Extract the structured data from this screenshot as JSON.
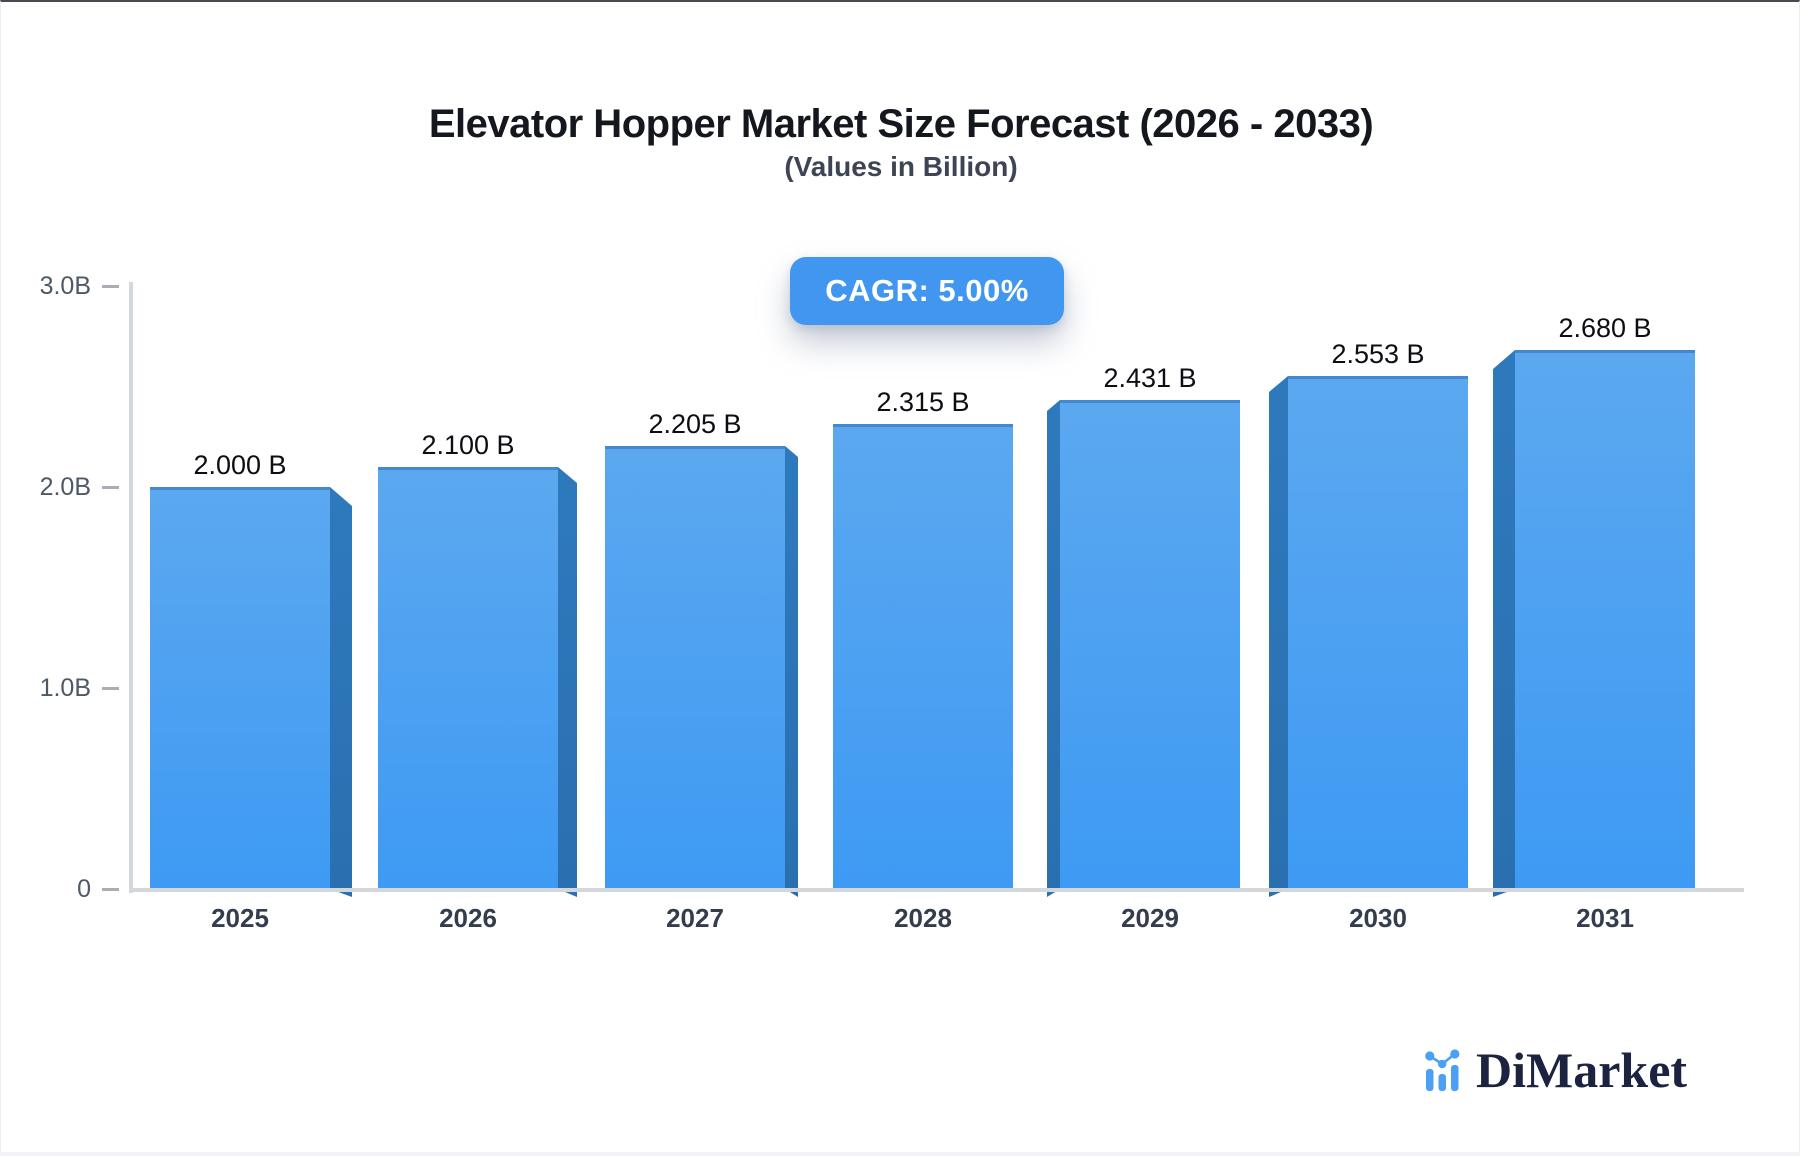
{
  "header": {
    "title": "Elevator Hopper Market Size Forecast (2026 - 2033)",
    "subtitle": "(Values in Billion)",
    "cagr_label": "CAGR: 5.00%"
  },
  "chart_data": {
    "type": "bar",
    "title": "Elevator Hopper Market Size Forecast (2026 - 2033)",
    "subtitle": "(Values in Billion)",
    "cagr": "5.00%",
    "unit": "Billion",
    "categories": [
      "2025",
      "2026",
      "2027",
      "2028",
      "2029",
      "2030",
      "2031"
    ],
    "values": [
      2.0,
      2.1,
      2.205,
      2.315,
      2.431,
      2.553,
      2.68
    ],
    "value_labels": [
      "2.000 B",
      "2.100 B",
      "2.205 B",
      "2.315 B",
      "2.431 B",
      "2.553 B",
      "2.680 B"
    ],
    "ylim": [
      0,
      3.0
    ],
    "yticks": [
      {
        "value": 0,
        "label": "0"
      },
      {
        "value": 1,
        "label": "1.0B"
      },
      {
        "value": 2,
        "label": "2.0B"
      },
      {
        "value": 3,
        "label": "3.0B"
      }
    ],
    "grid": false,
    "legend": false,
    "style": "3d-perspective-bars",
    "colors": {
      "bar_top": "#5ba8f0",
      "bar_bottom": "#3e9af3",
      "bar_top_edge": "#4489cf",
      "bar_side": "#2e79bd",
      "bar_side_dark": "#2a70b0",
      "axis": "#d3d6db",
      "tick": "#a8adb6",
      "badge_bg": "#4197ef",
      "badge_text": "#ffffff",
      "logo_blue": "#4aa0f5",
      "logo_text_color": "#1b2340"
    }
  },
  "footer": {
    "brand": "DiMarket"
  }
}
